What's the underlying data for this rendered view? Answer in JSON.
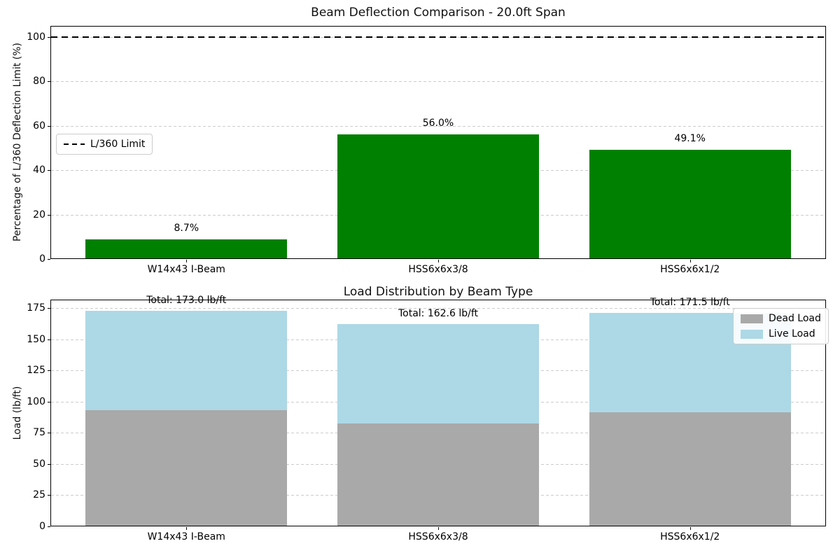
{
  "chart_data": [
    {
      "type": "bar",
      "title": "Beam Deflection Comparison - 20.0ft Span",
      "xlabel": "",
      "ylabel": "Percentage of L/360 Deflection Limit (%)",
      "categories": [
        "W14x43 I-Beam",
        "HSS6x6x3/8",
        "HSS6x6x1/2"
      ],
      "values": [
        8.7,
        56.0,
        49.1
      ],
      "bar_labels": [
        "8.7%",
        "56.0%",
        "49.1%"
      ],
      "bar_color": "#008000",
      "yticks": [
        0,
        20,
        40,
        60,
        80,
        100
      ],
      "ylim": [
        0,
        105
      ],
      "grid": true,
      "reference_line": {
        "value": 100,
        "color": "#000000",
        "style": "dashed"
      },
      "legend": {
        "position": "center-left",
        "entries": [
          {
            "label": "L/360 Limit",
            "type": "dashed-line",
            "color": "#000000"
          }
        ]
      }
    },
    {
      "type": "stacked-bar",
      "title": "Load Distribution by Beam Type",
      "xlabel": "",
      "ylabel": "Load (lb/ft)",
      "categories": [
        "W14x43 I-Beam",
        "HSS6x6x3/8",
        "HSS6x6x1/2"
      ],
      "series": [
        {
          "name": "Dead Load",
          "values": [
            93.0,
            82.6,
            91.5
          ],
          "color": "#a9a9a9"
        },
        {
          "name": "Live Load",
          "values": [
            80.0,
            80.0,
            80.0
          ],
          "color": "#add8e6"
        }
      ],
      "totals": [
        173.0,
        162.6,
        171.5
      ],
      "total_labels": [
        "Total: 173.0 lb/ft",
        "Total: 162.6 lb/ft",
        "Total: 171.5 lb/ft"
      ],
      "yticks": [
        0,
        25,
        50,
        75,
        100,
        125,
        150,
        175
      ],
      "ylim": [
        0,
        182
      ],
      "grid": true,
      "legend": {
        "position": "top-right",
        "entries": [
          {
            "label": "Dead Load",
            "type": "patch",
            "color": "#a9a9a9"
          },
          {
            "label": "Live Load",
            "type": "patch",
            "color": "#add8e6"
          }
        ]
      }
    }
  ]
}
